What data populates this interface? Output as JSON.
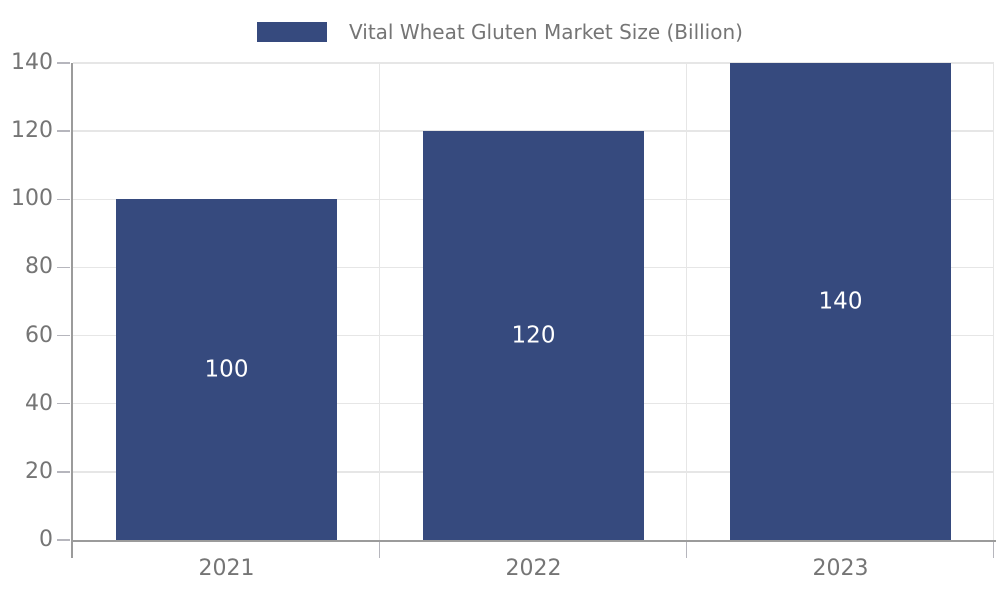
{
  "chart_data": {
    "type": "bar",
    "title": "Vital Wheat Gluten Market Size (Billion)",
    "legend": {
      "position": "top",
      "label": "Vital Wheat Gluten Market Size (Billion)"
    },
    "categories": [
      "2021",
      "2022",
      "2023"
    ],
    "values": [
      100,
      120,
      140
    ],
    "data_labels": [
      "100",
      "120",
      "140"
    ],
    "y_tick_labels": [
      "0",
      "20",
      "40",
      "60",
      "80",
      "100",
      "120",
      "140"
    ],
    "xlabel": "",
    "ylabel": "",
    "ylim": [
      0,
      140
    ],
    "ytick_step": 20,
    "grid": true,
    "colors": {
      "bar": "#364a7e",
      "bar_value_text": "#ffffff",
      "axis_line": "#9b9b9b",
      "gridline": "#e6e6e6",
      "tick": "#b6b6bd",
      "axis_text": "#757575",
      "legend_text": "#757575",
      "background": "#ffffff"
    }
  }
}
